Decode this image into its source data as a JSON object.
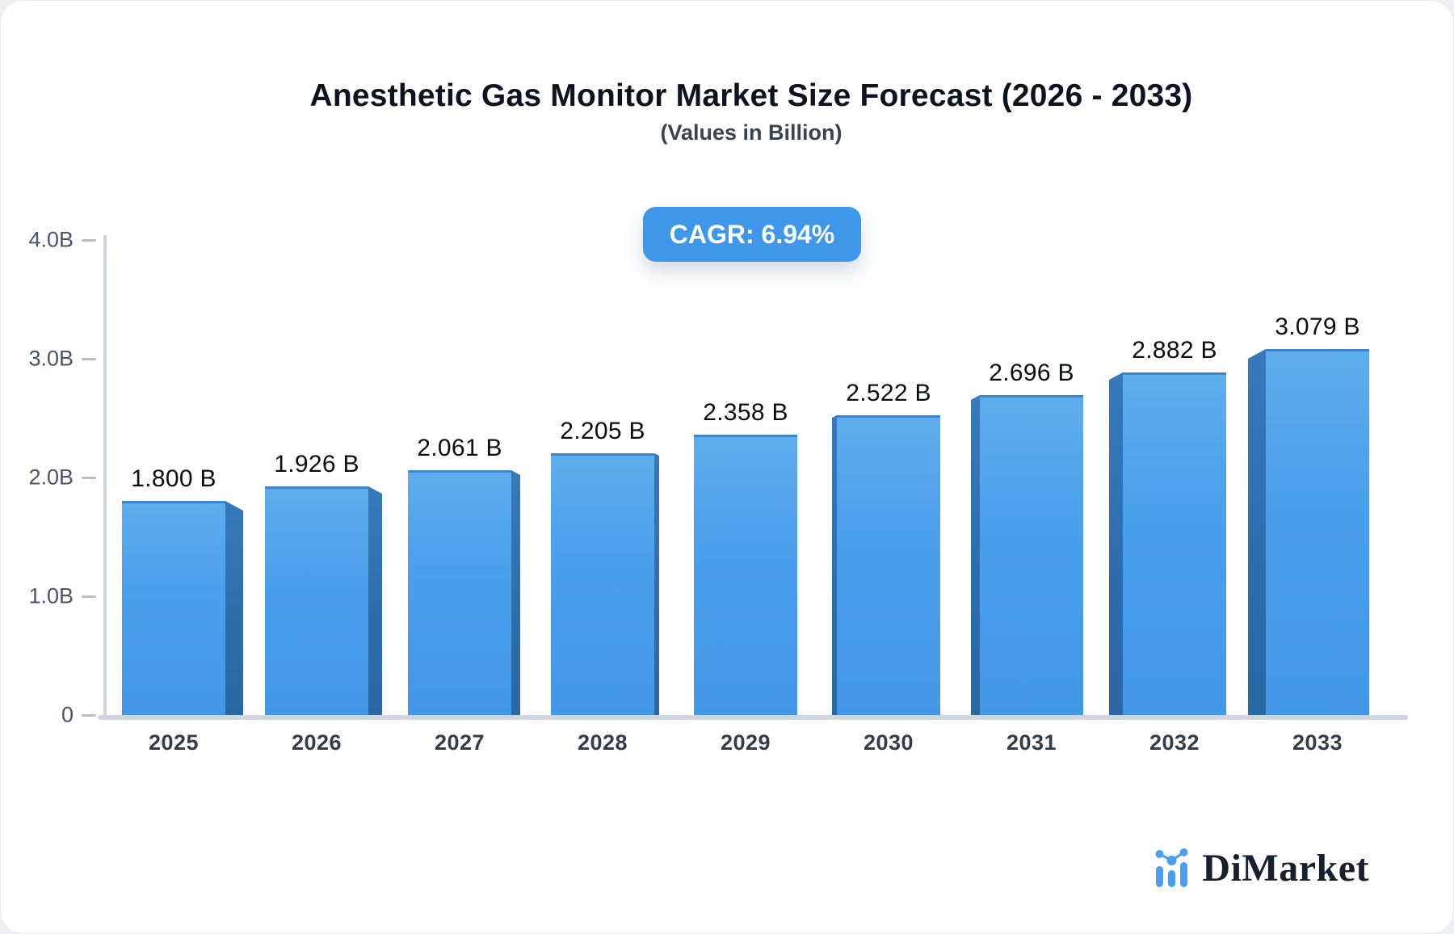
{
  "title": "Anesthetic Gas Monitor Market Size Forecast (2026 - 2033)",
  "subtitle": "(Values in Billion)",
  "badge": {
    "label": "CAGR: 6.94%"
  },
  "colors": {
    "badge_bg": "#3e97e8",
    "bar_face_top": "#5eadee",
    "bar_face_bottom": "#4397e7",
    "bar_face_edge": "#3d86cf",
    "bar_side": "#2c6ba9",
    "axis_line": "#cfd4da",
    "baseline": "#d2d6dc",
    "logo_blue": "#4aa0f0",
    "logo_text": "#182030"
  },
  "chart_data": {
    "type": "bar",
    "title": "Anesthetic Gas Monitor Market Size Forecast (2026 - 2033)",
    "subtitle": "(Values in Billion)",
    "annotation": "CAGR: 6.94%",
    "categories": [
      "2025",
      "2026",
      "2027",
      "2028",
      "2029",
      "2030",
      "2031",
      "2032",
      "2033"
    ],
    "values": [
      1.8,
      1.926,
      2.061,
      2.205,
      2.358,
      2.522,
      2.696,
      2.882,
      3.079
    ],
    "value_labels": [
      "1.800 B",
      "1.926 B",
      "2.061 B",
      "2.205 B",
      "2.358 B",
      "2.522 B",
      "2.696 B",
      "2.882 B",
      "3.079 B"
    ],
    "unit": "B",
    "xlabel": "",
    "ylabel": "",
    "ylim": [
      0,
      4.0
    ],
    "y_ticks": [
      {
        "label": "4.0B",
        "value": 4.0
      },
      {
        "label": "3.0B",
        "value": 3.0
      },
      {
        "label": "2.0B",
        "value": 2.0
      },
      {
        "label": "1.0B",
        "value": 1.0
      },
      {
        "label": "0",
        "value": 0
      }
    ],
    "grid": false,
    "legend": "none",
    "style": "3d-beveled-bars, perspective vanishing toward center bar"
  },
  "logo": {
    "text": "DiMarket",
    "icon": "bar-chart-sparkline-icon"
  }
}
